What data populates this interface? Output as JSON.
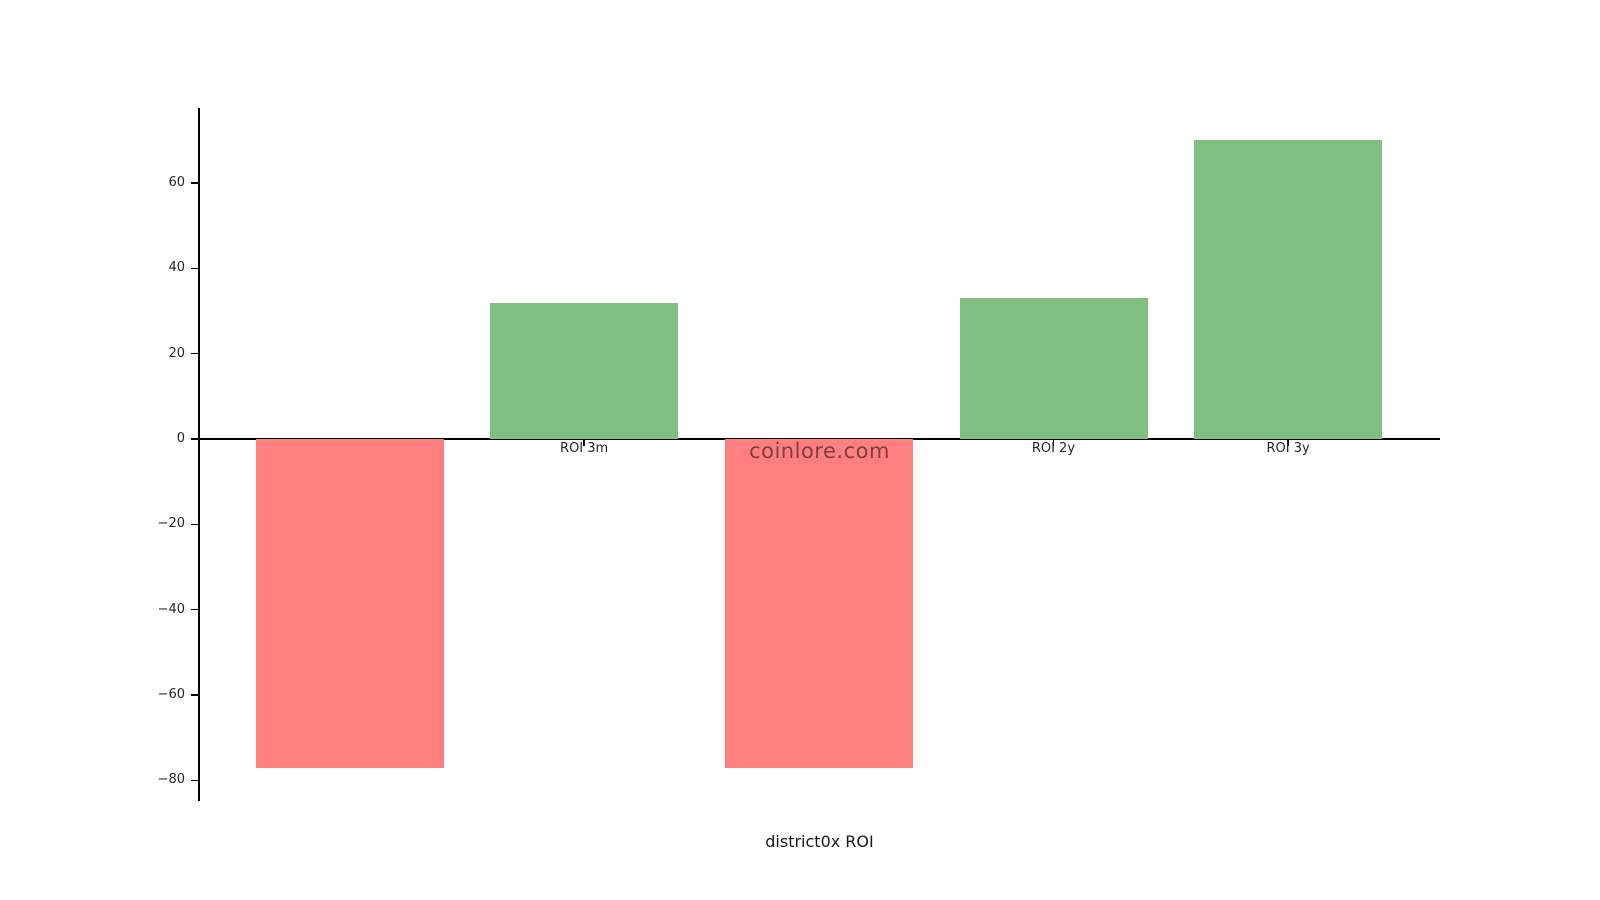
{
  "page": {
    "background_color": "#ffffff"
  },
  "chart_data": {
    "type": "bar",
    "title": "district0x ROI",
    "watermark": "coinlore.com",
    "categories": [
      "",
      "ROI 3m",
      "",
      "ROI 2y",
      "ROI 3y"
    ],
    "values": [
      -77,
      32,
      -77,
      33,
      70
    ],
    "bar_colors": [
      "#ff7f7f",
      "#7fbf7f",
      "#ff7f7f",
      "#7fbf7f",
      "#7fbf7f"
    ],
    "positive_color": "#7fbf7f",
    "negative_color": "#ff7f7f",
    "axis_color": "#000000",
    "text_color": "#262626",
    "yticks": [
      60,
      40,
      20,
      0,
      -20,
      -40,
      -60,
      -80
    ],
    "ylim": [
      -84.4,
      77.4
    ],
    "xlabel": "",
    "ylabel": "",
    "grid": false,
    "legend": null
  }
}
